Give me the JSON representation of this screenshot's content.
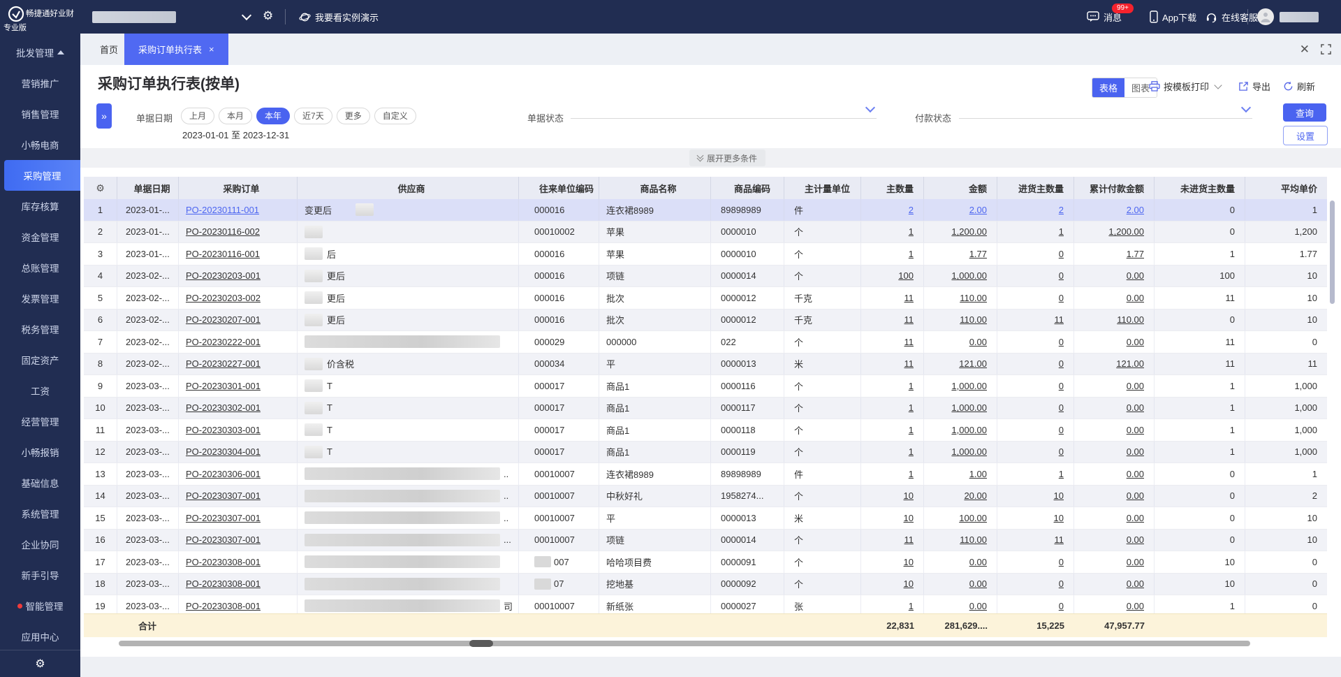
{
  "topbar": {
    "brand": "畅捷通好业财",
    "brand_sub": "专业版",
    "demo_link": "我要看实例演示",
    "messages_label": "消息",
    "messages_badge": "99+",
    "app_download_label": "App下载",
    "support_label": "在线客服"
  },
  "sidebar": {
    "items": [
      {
        "label": "批发管理",
        "arrow": true
      },
      {
        "label": "营销推广"
      },
      {
        "label": "销售管理"
      },
      {
        "label": "小畅电商"
      },
      {
        "label": "采购管理",
        "active": true
      },
      {
        "label": "库存核算"
      },
      {
        "label": "资金管理"
      },
      {
        "label": "总账管理"
      },
      {
        "label": "发票管理"
      },
      {
        "label": "税务管理"
      },
      {
        "label": "固定资产"
      },
      {
        "label": "工资"
      },
      {
        "label": "经营管理"
      },
      {
        "label": "小畅报销"
      },
      {
        "label": "基础信息"
      },
      {
        "label": "系统管理"
      },
      {
        "label": "企业协同"
      },
      {
        "label": "新手引导"
      },
      {
        "label": "智能管理",
        "dot": true
      },
      {
        "label": "应用中心"
      }
    ]
  },
  "tabs": {
    "home": "首页",
    "active": "采购订单执行表"
  },
  "page": {
    "title": "采购订单执行表(按单)"
  },
  "toolbar": {
    "view_table": "表格",
    "view_chart": "图表",
    "print": "按模板打印",
    "export": "导出",
    "refresh": "刷新"
  },
  "filters": {
    "date_label": "单据日期",
    "date_pills": [
      {
        "label": "上月"
      },
      {
        "label": "本月"
      },
      {
        "label": "本年",
        "active": true
      },
      {
        "label": "近7天"
      },
      {
        "label": "更多"
      },
      {
        "label": "自定义"
      }
    ],
    "date_range": "2023-01-01 至 2023-12-31",
    "status_label": "单据状态",
    "payment_label": "付款状态",
    "search_button": "查询",
    "settings_button": "设置",
    "expand_more": "展开更多条件"
  },
  "table": {
    "columns": [
      "",
      "单据日期",
      "采购订单",
      "供应商",
      "往来单位编码",
      "商品名称",
      "商品编码",
      "主计量单位",
      "主数量",
      "金额",
      "进货主数量",
      "累计付款金额",
      "未进货主数量",
      "平均单价"
    ],
    "rows": [
      {
        "n": "1",
        "date": "2023-01-...",
        "po": "PO-20230111-001",
        "supplier": {
          "strip": "after",
          "text": "变更后"
        },
        "code": "000016",
        "product": "连衣裙8989",
        "sku": "89898989",
        "unit": "件",
        "qty": "2",
        "amount": "2.00",
        "recv": "2",
        "paid": "2.00",
        "unrecv": "0",
        "price": "1",
        "selected": true
      },
      {
        "n": "2",
        "date": "2023-01-...",
        "po": "PO-20230116-002",
        "supplier": {
          "strip": "only"
        },
        "code": "00010002",
        "product": "苹果",
        "sku": "0000010",
        "unit": "个",
        "qty": "1",
        "amount": "1,200.00",
        "recv": "1",
        "paid": "1,200.00",
        "unrecv": "0",
        "price": "1,200"
      },
      {
        "n": "3",
        "date": "2023-01-...",
        "po": "PO-20230116-001",
        "supplier": {
          "strip": "before",
          "text": "后"
        },
        "code": "000016",
        "product": "苹果",
        "sku": "0000010",
        "unit": "个",
        "qty": "1",
        "amount": "1.77",
        "recv": "0",
        "paid": "1.77",
        "unrecv": "1",
        "price": "1.77"
      },
      {
        "n": "4",
        "date": "2023-02-...",
        "po": "PO-20230203-001",
        "supplier": {
          "strip": "before",
          "text": "更后"
        },
        "code": "000016",
        "product": "项链",
        "sku": "0000014",
        "unit": "个",
        "qty": "100",
        "amount": "1,000.00",
        "recv": "0",
        "paid": "0.00",
        "unrecv": "100",
        "price": "10"
      },
      {
        "n": "5",
        "date": "2023-02-...",
        "po": "PO-20230203-002",
        "supplier": {
          "strip": "before",
          "text": "更后"
        },
        "code": "000016",
        "product": "批次",
        "sku": "0000012",
        "unit": "千克",
        "qty": "11",
        "amount": "110.00",
        "recv": "0",
        "paid": "0.00",
        "unrecv": "11",
        "price": "10"
      },
      {
        "n": "6",
        "date": "2023-02-...",
        "po": "PO-20230207-001",
        "supplier": {
          "strip": "before",
          "text": "更后"
        },
        "code": "000016",
        "product": "批次",
        "sku": "0000012",
        "unit": "千克",
        "qty": "11",
        "amount": "110.00",
        "recv": "11",
        "paid": "110.00",
        "unrecv": "0",
        "price": "10"
      },
      {
        "n": "7",
        "date": "2023-02-...",
        "po": "PO-20230222-001",
        "supplier": {
          "wide": true
        },
        "code": "000029",
        "product": "000000",
        "sku": "022",
        "unit": "个",
        "qty": "11",
        "amount": "0.00",
        "recv": "0",
        "paid": "0.00",
        "unrecv": "11",
        "price": "0"
      },
      {
        "n": "8",
        "date": "2023-02-...",
        "po": "PO-20230227-001",
        "supplier": {
          "strip": "before",
          "text": "价含税"
        },
        "code": "000034",
        "product": "平",
        "sku": "0000013",
        "unit": "米",
        "qty": "11",
        "amount": "121.00",
        "recv": "0",
        "paid": "121.00",
        "unrecv": "11",
        "price": "11"
      },
      {
        "n": "9",
        "date": "2023-03-...",
        "po": "PO-20230301-001",
        "supplier": {
          "strip": "before",
          "text": "T"
        },
        "code": "000017",
        "product": "商品1",
        "sku": "0000116",
        "unit": "个",
        "qty": "1",
        "amount": "1,000.00",
        "recv": "0",
        "paid": "0.00",
        "unrecv": "1",
        "price": "1,000"
      },
      {
        "n": "10",
        "date": "2023-03-...",
        "po": "PO-20230302-001",
        "supplier": {
          "strip": "before",
          "text": "T"
        },
        "code": "000017",
        "product": "商品1",
        "sku": "0000117",
        "unit": "个",
        "qty": "1",
        "amount": "1,000.00",
        "recv": "0",
        "paid": "0.00",
        "unrecv": "1",
        "price": "1,000"
      },
      {
        "n": "11",
        "date": "2023-03-...",
        "po": "PO-20230303-001",
        "supplier": {
          "strip": "before",
          "text": "T"
        },
        "code": "000017",
        "product": "商品1",
        "sku": "0000118",
        "unit": "个",
        "qty": "1",
        "amount": "1,000.00",
        "recv": "0",
        "paid": "0.00",
        "unrecv": "1",
        "price": "1,000"
      },
      {
        "n": "12",
        "date": "2023-03-...",
        "po": "PO-20230304-001",
        "supplier": {
          "strip": "before",
          "text": "T"
        },
        "code": "000017",
        "product": "商品1",
        "sku": "0000119",
        "unit": "个",
        "qty": "1",
        "amount": "1,000.00",
        "recv": "0",
        "paid": "0.00",
        "unrecv": "1",
        "price": "1,000"
      },
      {
        "n": "13",
        "date": "2023-03-...",
        "po": "PO-20230306-001",
        "supplier": {
          "wide": true,
          "text": ".."
        },
        "code": "00010007",
        "product": "连衣裙8989",
        "sku": "89898989",
        "unit": "件",
        "qty": "1",
        "amount": "1.00",
        "recv": "1",
        "paid": "0.00",
        "unrecv": "0",
        "price": "1"
      },
      {
        "n": "14",
        "date": "2023-03-...",
        "po": "PO-20230307-001",
        "supplier": {
          "wide": true,
          "text": ".."
        },
        "code": "00010007",
        "product": "中秋好礼",
        "sku": "1958274...",
        "unit": "个",
        "qty": "10",
        "amount": "20.00",
        "recv": "10",
        "paid": "0.00",
        "unrecv": "0",
        "price": "2"
      },
      {
        "n": "15",
        "date": "2023-03-...",
        "po": "PO-20230307-001",
        "supplier": {
          "wide": true,
          "text": ".."
        },
        "code": "00010007",
        "product": "平",
        "sku": "0000013",
        "unit": "米",
        "qty": "10",
        "amount": "100.00",
        "recv": "10",
        "paid": "0.00",
        "unrecv": "0",
        "price": "10"
      },
      {
        "n": "16",
        "date": "2023-03-...",
        "po": "PO-20230307-001",
        "supplier": {
          "wide": true,
          "text": "..."
        },
        "code": "00010007",
        "product": "项链",
        "sku": "0000014",
        "unit": "个",
        "qty": "11",
        "amount": "110.00",
        "recv": "11",
        "paid": "0.00",
        "unrecv": "0",
        "price": "10"
      },
      {
        "n": "17",
        "date": "2023-03-...",
        "po": "PO-20230308-001",
        "supplier": {
          "wide": true
        },
        "code": {
          "blur": true,
          "text": "007"
        },
        "product": "哈哈项目费",
        "sku": "0000091",
        "unit": "个",
        "qty": "10",
        "amount": "0.00",
        "recv": "0",
        "paid": "0.00",
        "unrecv": "10",
        "price": "0"
      },
      {
        "n": "18",
        "date": "2023-03-...",
        "po": "PO-20230308-001",
        "supplier": {
          "wide": true
        },
        "code": {
          "blur": true,
          "text": "07"
        },
        "product": "挖地基",
        "sku": "0000092",
        "unit": "个",
        "qty": "10",
        "amount": "0.00",
        "recv": "0",
        "paid": "0.00",
        "unrecv": "10",
        "price": "0"
      },
      {
        "n": "19",
        "date": "2023-03-...",
        "po": "PO-20230308-001",
        "supplier": {
          "wide": true,
          "text": "司"
        },
        "code": "00010007",
        "product": "新纸张",
        "sku": "0000027",
        "unit": "张",
        "qty": "1",
        "amount": "0.00",
        "recv": "0",
        "paid": "0.00",
        "unrecv": "1",
        "price": "0"
      }
    ],
    "totals": {
      "label": "合计",
      "qty": "22,831",
      "amount": "281,629....",
      "recv": "15,225",
      "paid": "47,957.77"
    }
  },
  "colors": {
    "accent": "#4a63f0",
    "navy": "#212d52",
    "selected_row": "#dbdff8",
    "zebra_row": "#f1f2f7",
    "header_row": "#e9ebf4",
    "totals_bg": "#fcf3da",
    "badge_red": "#f5222d"
  }
}
